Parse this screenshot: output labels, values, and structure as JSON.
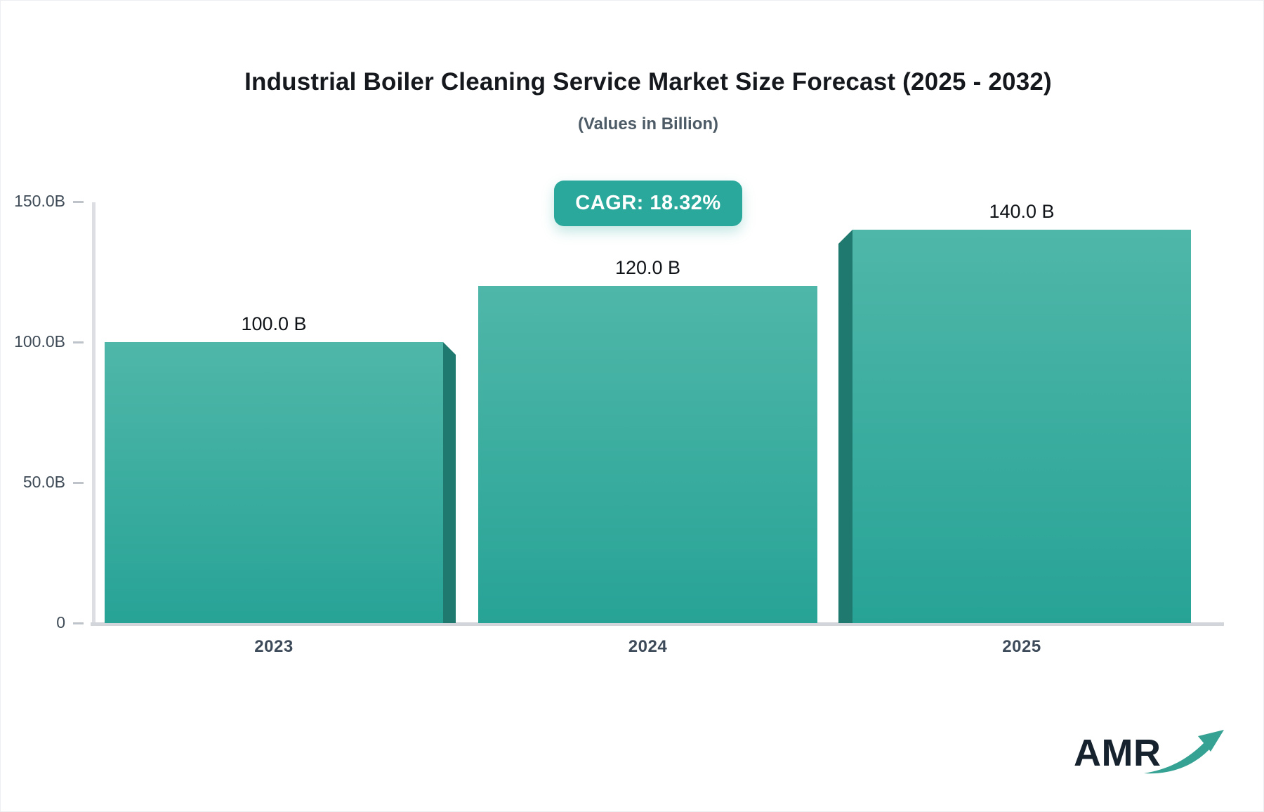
{
  "chart_data": {
    "type": "bar",
    "title": "Industrial Boiler Cleaning Service Market Size Forecast (2025 - 2032)",
    "subtitle": "(Values in Billion)",
    "cagr_label": "CAGR: 18.32%",
    "categories": [
      "2023",
      "2024",
      "2025"
    ],
    "values": [
      100.0,
      120.0,
      140.0
    ],
    "value_labels": [
      "100.0 B",
      "120.0 B",
      "140.0 B"
    ],
    "unit": "Billion",
    "ylim": [
      0,
      150
    ],
    "y_ticks": [
      {
        "label": "150.0B",
        "value": 150
      },
      {
        "label": "100.0B",
        "value": 100
      },
      {
        "label": "50.0B",
        "value": 50
      },
      {
        "label": "0",
        "value": 0
      }
    ],
    "grid": false,
    "legend": false,
    "colors": {
      "bar_face_top": "#4fb7a9",
      "bar_face_bottom": "#27a396",
      "bar_side": "#20796e",
      "badge_background": "#2aa89b",
      "axis_line": "#dcdee3",
      "title_text": "#15181d",
      "subtitle_text": "#4d5b67"
    }
  },
  "logo": {
    "text": "AMR",
    "arrow_color": "#35a293"
  }
}
